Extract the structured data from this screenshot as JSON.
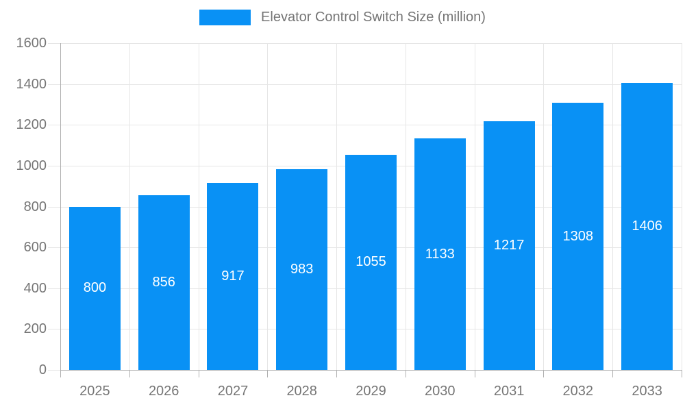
{
  "chart_data": {
    "type": "bar",
    "title": "Elevator Control Switch Size (million)",
    "categories": [
      "2025",
      "2026",
      "2027",
      "2028",
      "2029",
      "2030",
      "2031",
      "2032",
      "2033"
    ],
    "values": [
      800,
      856,
      917,
      983,
      1055,
      1133,
      1217,
      1308,
      1406
    ],
    "series": [
      {
        "name": "Elevator Control Switch Size (million)",
        "values": [
          800,
          856,
          917,
          983,
          1055,
          1133,
          1217,
          1308,
          1406
        ]
      }
    ],
    "bar_value_labels": [
      "800",
      "856",
      "917",
      "983",
      "1055",
      "1133",
      "1217",
      "1308",
      "1406"
    ],
    "xlabel": "",
    "ylabel": "",
    "ylim": [
      0,
      1600
    ],
    "yticks": [
      0,
      200,
      400,
      600,
      800,
      1000,
      1200,
      1400,
      1600
    ],
    "grid": true,
    "legend_position": "top-center",
    "value_labels_position": "inside-middle",
    "colors": {
      "bar": "#0991f5",
      "grid": "#e6e6e6",
      "axis": "#b0b0b0",
      "text": "#757575",
      "value_label": "#ffffff",
      "background": "#ffffff"
    }
  }
}
